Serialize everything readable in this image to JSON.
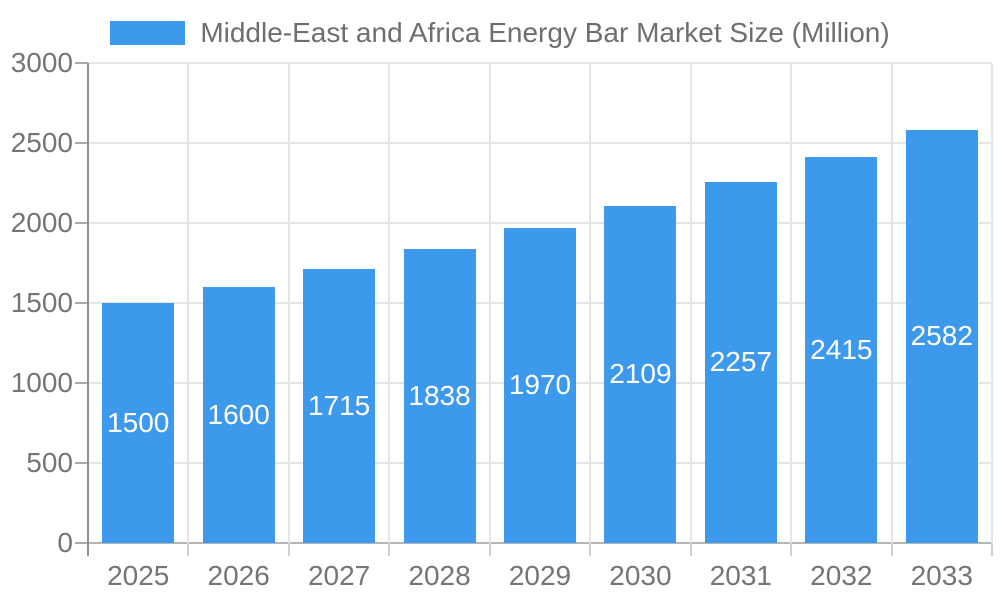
{
  "chart_data": {
    "type": "bar",
    "title": "Middle-East and Africa Energy Bar Market Size (Million)",
    "categories": [
      "2025",
      "2026",
      "2027",
      "2028",
      "2029",
      "2030",
      "2031",
      "2032",
      "2033"
    ],
    "values": [
      1500,
      1600,
      1715,
      1838,
      1970,
      2109,
      2257,
      2415,
      2582
    ],
    "xlabel": "",
    "ylabel": "",
    "ylim": [
      0,
      3000
    ],
    "yticks": [
      0,
      500,
      1000,
      1500,
      2000,
      2500,
      3000
    ],
    "grid": true,
    "legend_position": "top-center",
    "value_label_position": "inside-center",
    "colors": {
      "bar": "#3D99EC",
      "value_label": "#FFFFFF",
      "axis_text": "#757575",
      "title_text": "#6E6E6E",
      "gridline": "#E5E5E5",
      "axis_line": "#8F8F8F",
      "baseline": "#B5B5B5",
      "y_tick": "#AAAAAA",
      "x_tick": "#D0D0D0",
      "background": "#FFFFFF"
    }
  },
  "legend": {
    "label": "Middle-East and Africa Energy Bar Market Size (Million)"
  }
}
